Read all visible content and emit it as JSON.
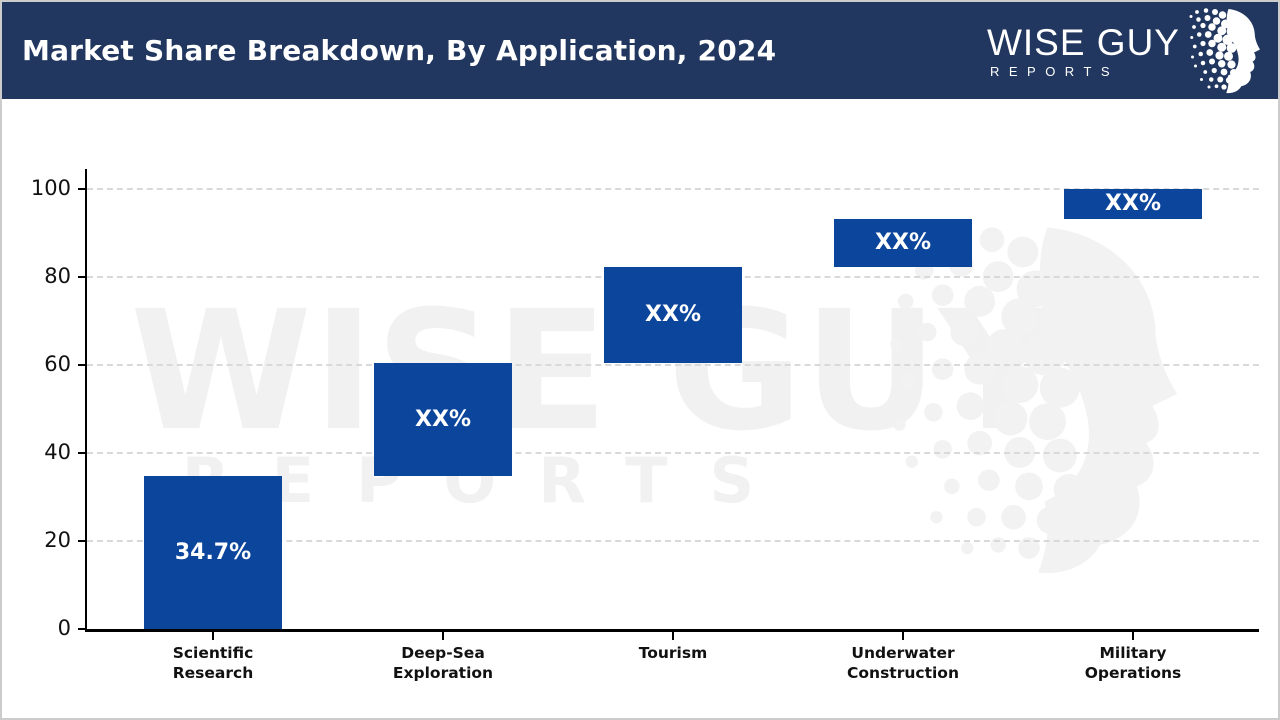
{
  "header": {
    "title": "Market Share Breakdown, By Application, 2024",
    "logo": {
      "line1": "WISE GUY",
      "line2": "REPORTS"
    }
  },
  "watermark": {
    "line1": "WISE GUY",
    "line2": "REPORTS"
  },
  "icons": {
    "logo_head": "wiseguy-head-icon",
    "watermark_head": "watermark-head-icon"
  },
  "colors": {
    "header_bg": "#21375f",
    "bar": "#0b459c",
    "bar_label_text": "#ffffff",
    "grid": "#d9d9d9",
    "axis": "#000000",
    "tick_text": "#111111",
    "watermark": "#f1f1f1",
    "canvas_border": "#cccccc"
  },
  "chart_data": {
    "type": "bar",
    "subtype": "waterfall",
    "title": "Market Share Breakdown, By Application, 2024",
    "xlabel": "",
    "ylabel": "",
    "ylim": [
      0,
      100
    ],
    "y_ticks": [
      0,
      20,
      40,
      60,
      80,
      100
    ],
    "grid": "horizontal-dashed",
    "legend": "none",
    "categories": [
      "Scientific Research",
      "Deep-Sea Exploration",
      "Tourism",
      "Underwater Construction",
      "Military Operations"
    ],
    "segments": [
      {
        "category": "Scientific Research",
        "start": 0,
        "end": 34.7,
        "label": "34.7%"
      },
      {
        "category": "Deep-Sea Exploration",
        "start": 34.7,
        "end": 60.5,
        "label": "XX%"
      },
      {
        "category": "Tourism",
        "start": 60.5,
        "end": 82.3,
        "label": "XX%"
      },
      {
        "category": "Underwater Construction",
        "start": 82.3,
        "end": 93.2,
        "label": "XX%"
      },
      {
        "category": "Military Operations",
        "start": 93.2,
        "end": 100,
        "label": "XX%"
      }
    ]
  }
}
